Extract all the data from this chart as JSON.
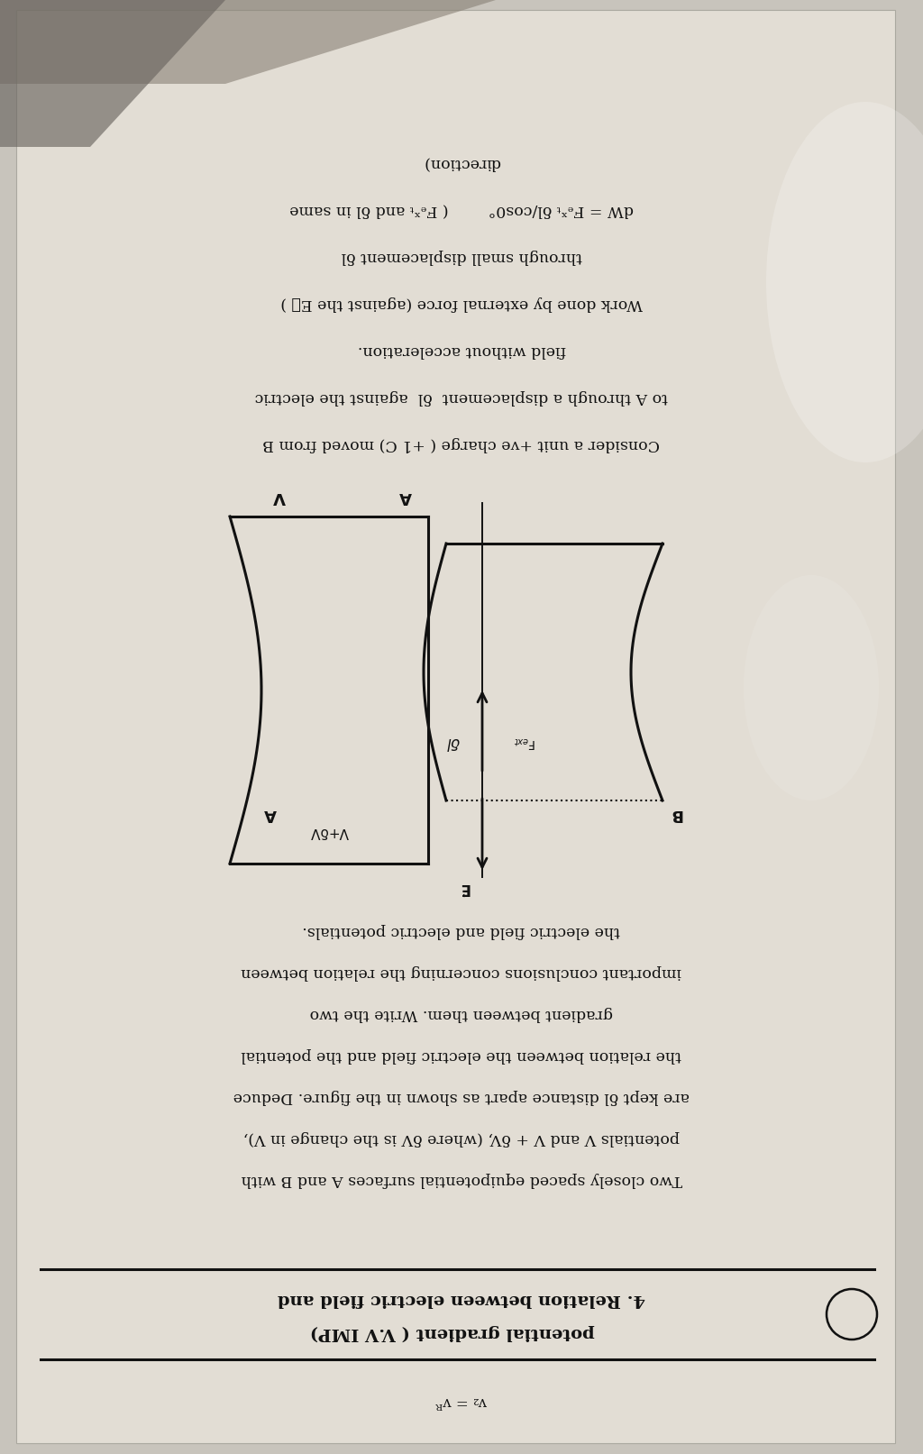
{
  "bg_color": "#c8c4bc",
  "page_bg": "#e2ddd4",
  "text_color": "#111111",
  "diagram_color": "#111111",
  "title_line1": "4. Relation between electric field and",
  "title_line2": "   potential gradient ( V.V IMP)",
  "body_lines": [
    "Two closely spaced equipotential surfaces A and B with",
    "potentials V and V + δV, (where δV is the change in V),",
    "are kept δl distance apart as shown in the figure. Deduce",
    "the relation between the electric field and the potential",
    "gradient between them. Write the two",
    "important conclusions concerning the relation between",
    "the electric field and electric potentials."
  ],
  "lower_lines": [
    "Consider a unit +ve charge ( +1 C) moved from B",
    "to A through a displacement  δl  against the electric",
    "field without acceleration.",
    "Work done by external force (against the E⃗ )",
    "through small displacement δl",
    "dW = Fₑˣₜ δl/cos0°        ( Fₑˣₜ and δl in same",
    "direction)"
  ],
  "bottom_formula": "v₂ = vᴿ"
}
